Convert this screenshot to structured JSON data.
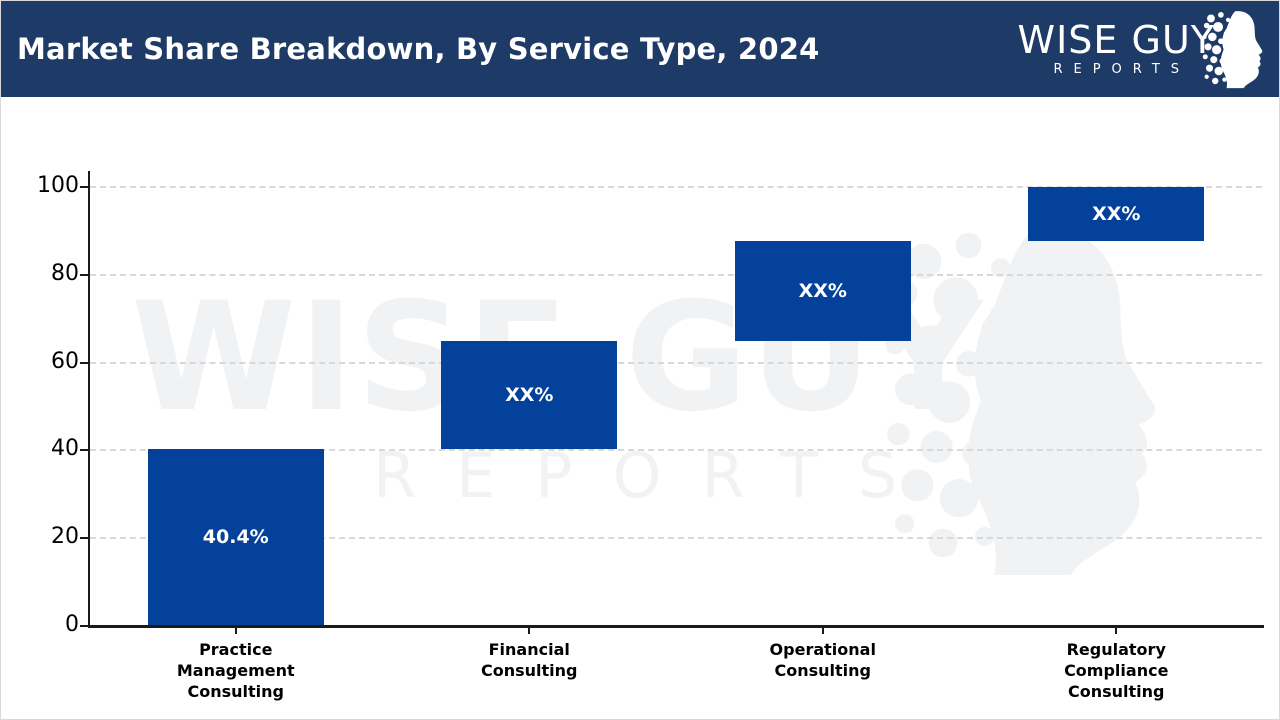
{
  "header": {
    "bg_color": "#1e3a66",
    "title": "Market Share Breakdown, By Service Type, 2024",
    "logo": {
      "line1": "WISE GUY",
      "line2": "REPORTS",
      "face_icon": "dotted-head-profile"
    }
  },
  "watermark": {
    "line1": "WISE GUY",
    "line2": "REPORTS",
    "face_icon": "dotted-head-profile"
  },
  "chart_data": {
    "type": "bar",
    "subtype": "waterfall-style floating segment bars",
    "title": "Market Share Breakdown, By Service Type, 2024",
    "xlabel": "",
    "ylabel": "",
    "ylim": [
      0,
      105
    ],
    "yticks": [
      0,
      20,
      40,
      60,
      80,
      100
    ],
    "grid": "horizontal dashed gridlines",
    "legend": "none",
    "bar_color": "#04419b",
    "bar_label_color": "#ffffff",
    "categories": [
      "Practice Management Consulting",
      "Financial Consulting",
      "Operational Consulting",
      "Regulatory Compliance Consulting"
    ],
    "category_lines": [
      [
        "Practice",
        "Management",
        "Consulting"
      ],
      [
        "Financial",
        "Consulting"
      ],
      [
        "Operational",
        "Consulting"
      ],
      [
        "Regulatory",
        "Compliance",
        "Consulting"
      ]
    ],
    "segments": [
      {
        "category": "Practice Management Consulting",
        "start": 0,
        "end": 40.4,
        "value": 40.4,
        "label": "40.4%"
      },
      {
        "category": "Financial Consulting",
        "start": 40.4,
        "end": 65,
        "value": 24.6,
        "label": "XX%"
      },
      {
        "category": "Operational Consulting",
        "start": 65,
        "end": 87.7,
        "value": 22.7,
        "label": "XX%"
      },
      {
        "category": "Regulatory Compliance Consulting",
        "start": 87.7,
        "end": 100,
        "value": 12.3,
        "label": "XX%"
      }
    ]
  }
}
